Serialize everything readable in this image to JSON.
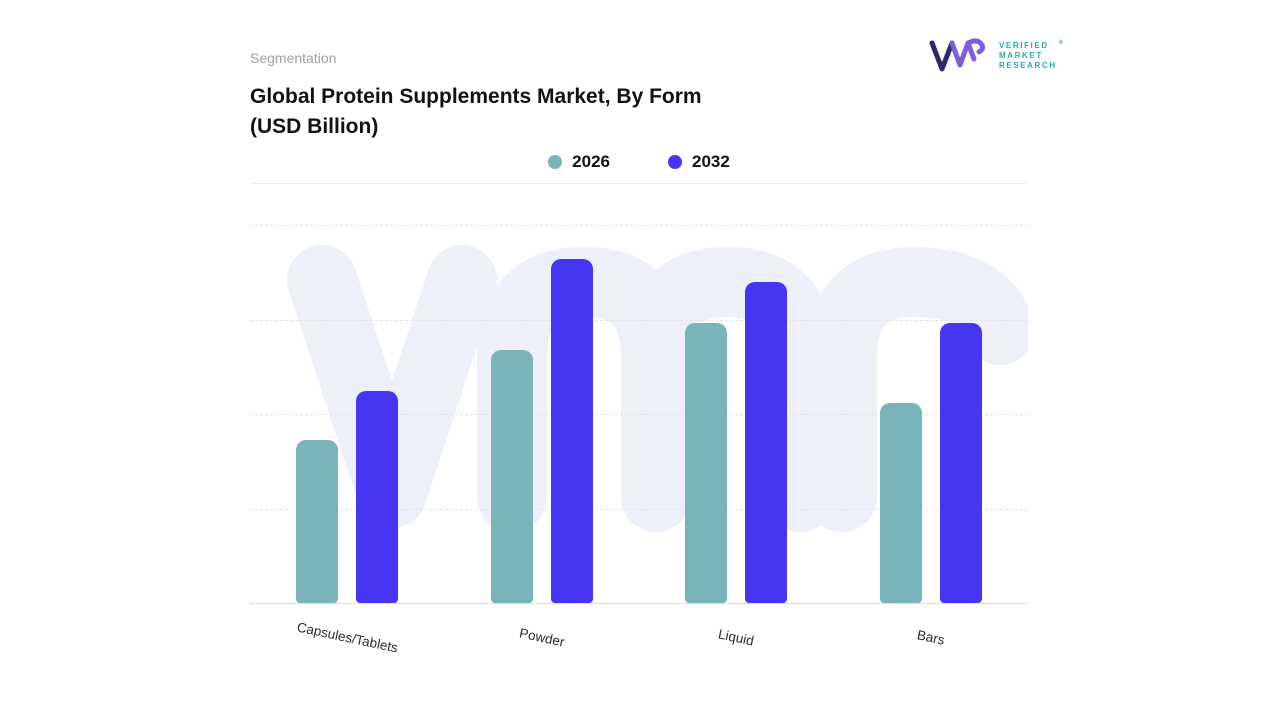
{
  "header": {
    "section_label": "Segmentation",
    "title_line1": "Global Protein Supplements Market, By Form",
    "title_line2": "(USD Billion)"
  },
  "logo": {
    "brand_line1": "VERIFIED",
    "brand_line2": "MARKET",
    "brand_line3": "RESEARCH",
    "registered_mark": "®",
    "monogram_color_primary": "#2b2a6a",
    "monogram_color_secondary": "#7e5ce0",
    "brand_text_color": "#2fa7ad"
  },
  "watermark_text": "vmr",
  "watermark_color": "#edeff9",
  "chart_data": {
    "type": "bar",
    "title": "Global Protein Supplements Market, By Form (USD Billion)",
    "categories": [
      "Capsules/Tablets",
      "Powder",
      "Liquid",
      "Bars"
    ],
    "series": [
      {
        "name": "2026",
        "color": "#79b4b8",
        "values": [
          43,
          67,
          74,
          53
        ]
      },
      {
        "name": "2032",
        "color": "#4636f4",
        "values": [
          56,
          91,
          85,
          74
        ]
      }
    ],
    "ylim": [
      0,
      100
    ],
    "y_axis_labels_visible": false,
    "grid": "dashed-horizontal",
    "legend_position": "top-center"
  }
}
